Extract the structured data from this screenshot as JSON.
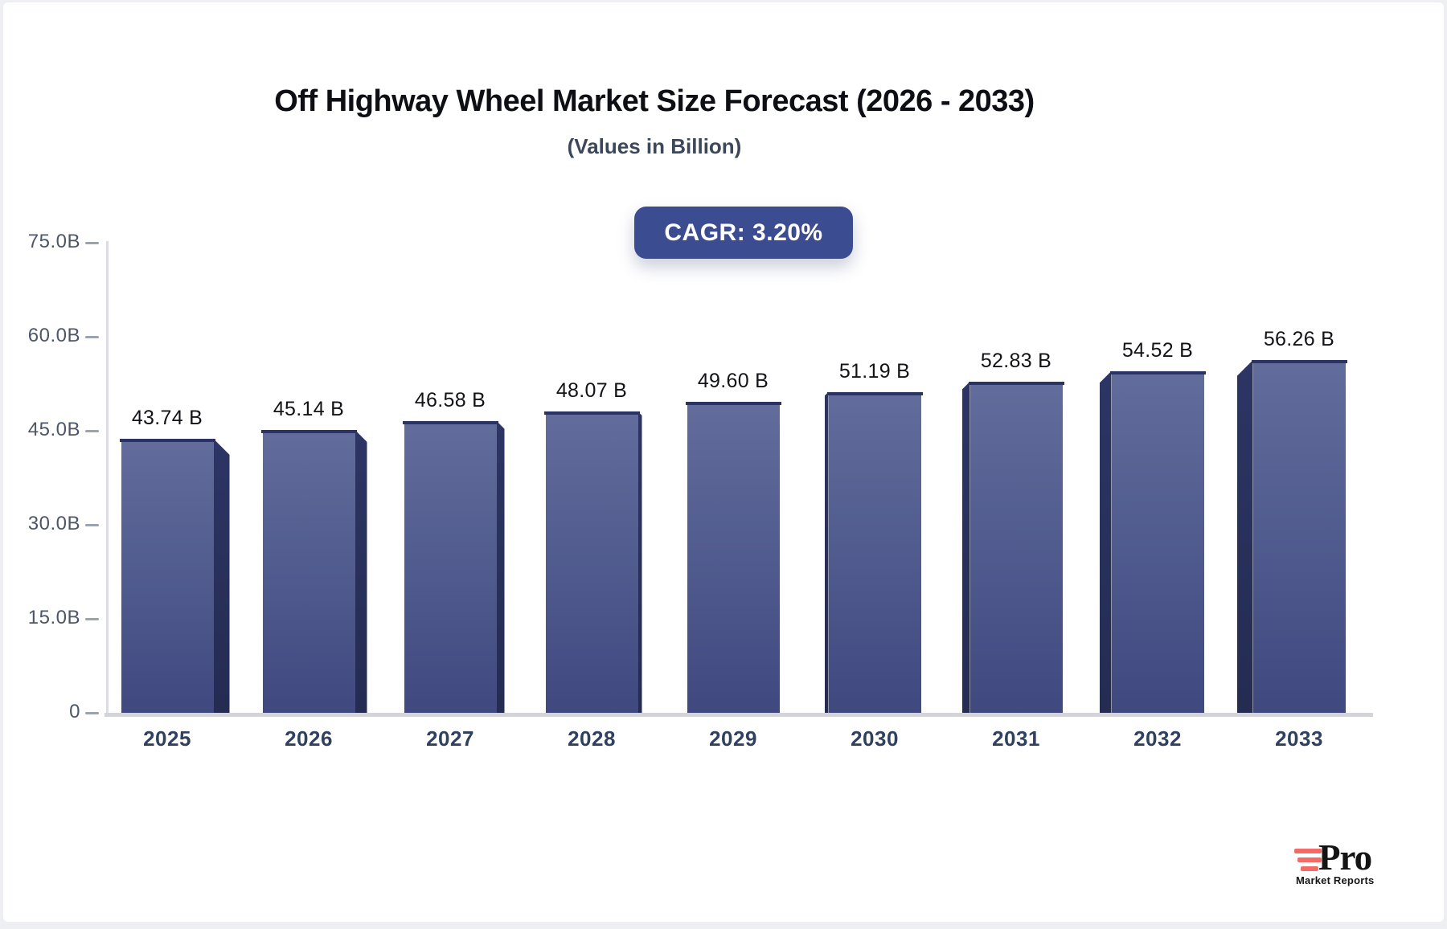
{
  "header": {
    "title": "Off Highway Wheel Market Size Forecast (2026 - 2033)",
    "subtitle": "(Values in Billion)",
    "cagr_label": "CAGR: 3.20%"
  },
  "chart_data": {
    "type": "bar",
    "title": "Off Highway Wheel Market Size Forecast (2026 - 2033)",
    "subtitle": "(Values in Billion)",
    "xlabel": "",
    "ylabel": "",
    "ylim": [
      0,
      75
    ],
    "grid": false,
    "legend": false,
    "categories": [
      "2025",
      "2026",
      "2027",
      "2028",
      "2029",
      "2030",
      "2031",
      "2032",
      "2033"
    ],
    "values": [
      43.74,
      45.14,
      46.58,
      48.07,
      49.6,
      51.19,
      52.83,
      54.52,
      56.26
    ],
    "value_labels": [
      "43.74 B",
      "45.14 B",
      "46.58 B",
      "48.07 B",
      "49.60 B",
      "51.19 B",
      "52.83 B",
      "54.52 B",
      "56.26 B"
    ],
    "yticks": [
      {
        "value": 0,
        "label": "0"
      },
      {
        "value": 15,
        "label": "15.0B"
      },
      {
        "value": 30,
        "label": "30.0B"
      },
      {
        "value": 45,
        "label": "45.0B"
      },
      {
        "value": 60,
        "label": "60.0B"
      },
      {
        "value": 75,
        "label": "75.0B"
      }
    ],
    "cagr": "3.20%",
    "colors": {
      "bar_face_top": "#626d9c",
      "bar_face_bottom": "#3f4980",
      "bar_side_top": "#2c3564",
      "bar_side_bottom": "#242c52",
      "bar_rim": "#2a3363",
      "badge_bg": "#3c4c90"
    }
  },
  "branding": {
    "name": "Pro",
    "tagline": "Market Reports",
    "accent": "#f26b66"
  }
}
